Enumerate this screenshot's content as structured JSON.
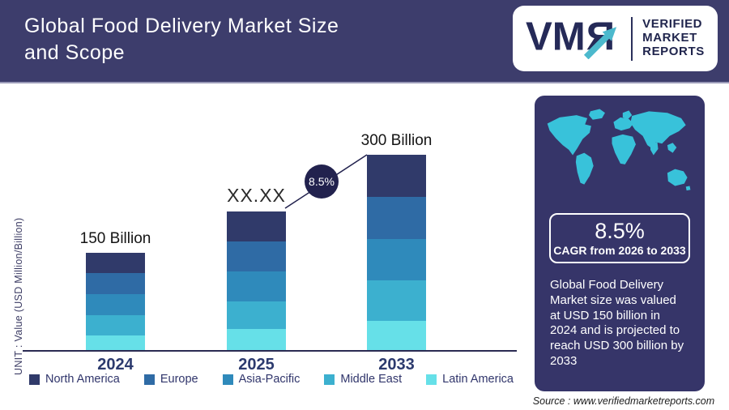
{
  "header": {
    "title": "Global Food Delivery Market Size\nand Scope"
  },
  "logo": {
    "mark": "VMR",
    "brand": "VERIFIED\nMARKET\nREPORTS"
  },
  "chart_data": {
    "type": "bar",
    "stacked": true,
    "title": "Global Food Delivery Market Size and Scope",
    "ylabel": "UNIT : Value (USD Million/Billion)",
    "xlabel": "",
    "categories": [
      "2024",
      "2025",
      "2033"
    ],
    "bar_labels": [
      "150 Billion",
      "XX.XX",
      "300 Billion"
    ],
    "totals": [
      150,
      213,
      300
    ],
    "series": [
      {
        "name": "North America",
        "color": "#303a6a",
        "values": [
          32,
          46,
          65
        ]
      },
      {
        "name": "Europe",
        "color": "#2f6ba5",
        "values": [
          32,
          46,
          64
        ]
      },
      {
        "name": "Asia-Pacific",
        "color": "#2f8abb",
        "values": [
          32,
          46,
          64
        ]
      },
      {
        "name": "Middle East",
        "color": "#3cb0cf",
        "values": [
          31,
          43,
          62
        ]
      },
      {
        "name": "Latin America",
        "color": "#66e0e8",
        "values": [
          23,
          32,
          45
        ]
      }
    ],
    "ylim": [
      0,
      320
    ],
    "grid": false,
    "legend_position": "bottom",
    "annotation": {
      "cagr_label": "8.5%"
    }
  },
  "sidebar": {
    "cagr_value": "8.5%",
    "cagr_caption": "CAGR from 2026 to 2033",
    "description": "Global Food Delivery\nMarket  size was valued\nat USD 150 billion in\n2024 and is projected to\nreach USD 300 billion by\n2033"
  },
  "source": "Source : www.verifiedmarketreports.com",
  "colors": {
    "header_bg": "#3d3d6c",
    "sidebar_bg": "#363569",
    "map_teal": "#38c2da",
    "bubble_navy": "#22224e",
    "axis_navy": "#2b2b52",
    "logo_navy": "#252a58",
    "logo_arrow_teal": "#4cb9cd"
  }
}
